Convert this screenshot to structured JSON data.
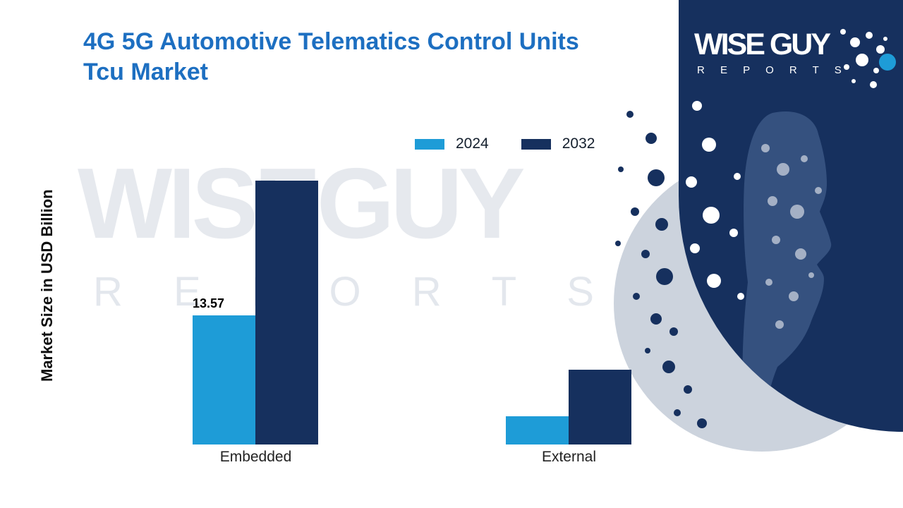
{
  "page": {
    "title": "4G 5G Automotive Telematics Control Units Tcu Market"
  },
  "brand": {
    "wordmark": "WISE GUY",
    "subtext": "R E P O R T S"
  },
  "watermark": {
    "line1": "WISEGUY",
    "line2": "R E P O R T S"
  },
  "colors": {
    "title_blue": "#1d6fc1",
    "navy": "#16305e",
    "series_2024": "#1e9cd7",
    "series_2032": "#16305e",
    "watermark_gray": "#e6e9ee"
  },
  "chart_data": {
    "type": "bar",
    "title": "4G 5G Automotive Telematics Control Units Tcu Market",
    "ylabel": "Market Size in USD Billion",
    "xlabel": "",
    "categories": [
      "Embedded",
      "External"
    ],
    "series": [
      {
        "name": "2024",
        "color": "#1e9cd7",
        "values": [
          13.57,
          2.97
        ],
        "labels": [
          "13.57",
          ""
        ]
      },
      {
        "name": "2032",
        "color": "#16305e",
        "values": [
          27.74,
          7.86
        ],
        "labels": [
          "",
          ""
        ]
      }
    ],
    "ylim": [
      0,
      30
    ],
    "grid": false,
    "legend_position": "top-center"
  }
}
